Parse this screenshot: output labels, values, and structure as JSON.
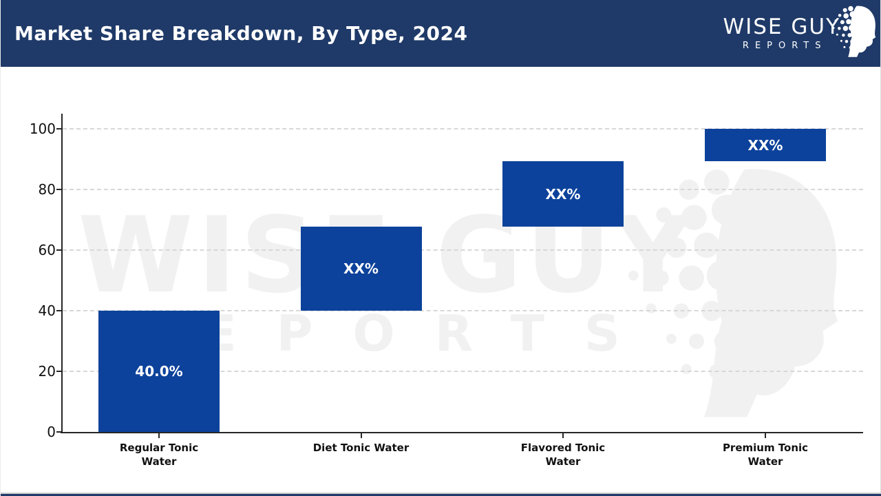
{
  "header": {
    "title": "Market Share Breakdown, By Type, 2024",
    "logo": {
      "line1": "WISE GUY",
      "line2": "REPORTS"
    }
  },
  "watermark": {
    "line1": "WISE GUY",
    "line2": "REPORTS"
  },
  "colors": {
    "header_bg": "#1f3a68",
    "bar_fill": "#0c429b",
    "bar_label_text": "#ffffff",
    "axis": "#262626",
    "gridline": "#d7d7d7",
    "watermark_gray": "#f1f1f1",
    "footer_bar": "#1f3a68"
  },
  "chart_data": {
    "type": "bar",
    "subtype": "waterfall",
    "title": "Market Share Breakdown, By Type, 2024",
    "categories": [
      "Regular Tonic Water",
      "Diet Tonic Water",
      "Flavored Tonic Water",
      "Premium Tonic Water"
    ],
    "category_lines": [
      [
        "Regular Tonic",
        "Water"
      ],
      [
        "Diet Tonic Water"
      ],
      [
        "Flavored Tonic",
        "Water"
      ],
      [
        "Premium Tonic",
        "Water"
      ]
    ],
    "segments": [
      {
        "category": "Regular Tonic Water",
        "start": 0,
        "end": 40,
        "label": "40.0%"
      },
      {
        "category": "Diet Tonic Water",
        "start": 40,
        "end": 67.7,
        "label": "XX%"
      },
      {
        "category": "Flavored Tonic Water",
        "start": 67.7,
        "end": 89.3,
        "label": "XX%"
      },
      {
        "category": "Premium Tonic Water",
        "start": 89.3,
        "end": 100,
        "label": "XX%"
      }
    ],
    "xlabel": "",
    "ylabel": "",
    "yticks": [
      0,
      20,
      40,
      60,
      80,
      100
    ],
    "ylim": [
      0,
      105
    ],
    "grid": "horizontal dashed, behind bars",
    "legend": "none"
  }
}
